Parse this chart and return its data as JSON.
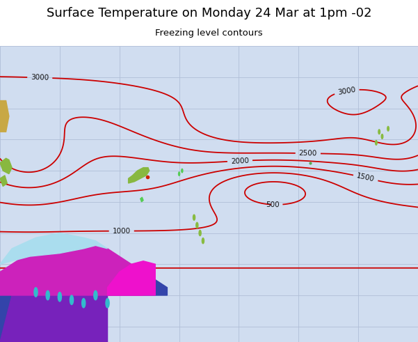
{
  "title": "Surface Temperature on Monday 24 Mar at 1pm -02",
  "subtitle": "Freezing level contours",
  "title_fontsize": 13,
  "subtitle_fontsize": 9.5,
  "background_color": "#ffffff",
  "map_bg_color": "#d0ddf0",
  "grid_color": "#b0bfd8",
  "contour_color": "#cc0000",
  "contour_linewidth": 1.3,
  "contour_label_fontsize": 7.5,
  "figsize": [
    6.01,
    4.91
  ],
  "dpi": 100,
  "xlim": [
    -60,
    10
  ],
  "ylim": [
    -65,
    -46
  ],
  "contour_levels": [
    500,
    1000,
    1500,
    2000,
    2500,
    3000
  ]
}
